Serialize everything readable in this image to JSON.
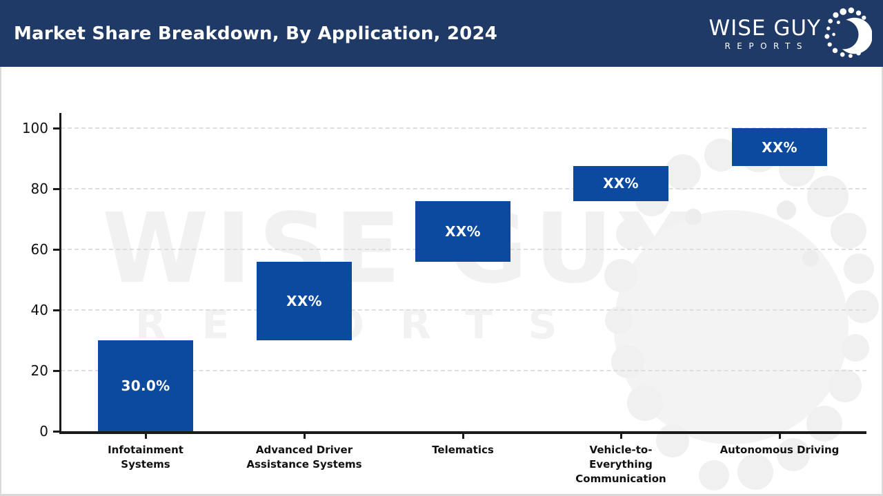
{
  "header": {
    "title": "Market Share Breakdown, By Application, 2024",
    "background_color": "#203a67",
    "logo": {
      "name": "WISE GUY",
      "subtitle": "REPORTS"
    }
  },
  "watermark": {
    "line1": "WISE GUY",
    "line2": "REPORTS"
  },
  "chart_data": {
    "type": "bar",
    "subtype": "waterfall-floating-segments",
    "title": "Market Share Breakdown, By Application, 2024",
    "categories": [
      "Infotainment Systems",
      "Advanced Driver Assistance Systems",
      "Telematics",
      "Vehicle-to-Everything Communication",
      "Autonomous Driving"
    ],
    "category_label_lines": [
      [
        "Infotainment",
        "Systems"
      ],
      [
        "Advanced Driver",
        "Assistance Systems"
      ],
      [
        "Telematics"
      ],
      [
        "Vehicle-to-",
        "Everything",
        "Communication"
      ],
      [
        "Autonomous Driving"
      ]
    ],
    "segments": [
      {
        "category": "Infotainment Systems",
        "start": 0,
        "end": 30,
        "value": 30.0,
        "value_label": "30.0%"
      },
      {
        "category": "Advanced Driver Assistance Systems",
        "start": 30,
        "end": 56,
        "value": 26,
        "value_label": "XX%"
      },
      {
        "category": "Telematics",
        "start": 56,
        "end": 76,
        "value": 20,
        "value_label": "XX%"
      },
      {
        "category": "Vehicle-to-Everything Communication",
        "start": 76,
        "end": 87.5,
        "value": 11.5,
        "value_label": "XX%"
      },
      {
        "category": "Autonomous Driving",
        "start": 87.5,
        "end": 100,
        "value": 12.5,
        "value_label": "XX%"
      }
    ],
    "xlabel": "",
    "ylabel": "",
    "ylim": [
      0,
      105
    ],
    "yticks": [
      0,
      20,
      40,
      60,
      80,
      100
    ],
    "grid": "horizontal-dashed",
    "grid_color": "#dedede",
    "legend": "none",
    "bar_color": "#0b4a9f",
    "bar_label_color": "#ffffff",
    "axis_color": "#1a1a1a"
  }
}
